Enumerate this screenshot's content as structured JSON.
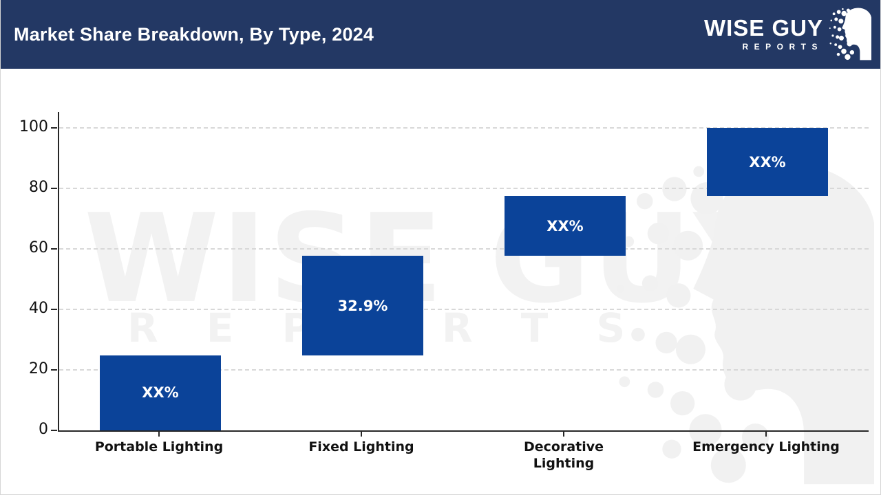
{
  "header": {
    "title": "Market Share Breakdown, By Type, 2024",
    "logo": {
      "name": "WISE GUY",
      "tagline": "REPORTS"
    }
  },
  "watermark": {
    "name": "WISE GUY",
    "tagline": "R E P O R T S"
  },
  "chart_data": {
    "type": "bar",
    "subtype": "waterfall",
    "title": "Market Share Breakdown, By Type, 2024",
    "categories": [
      "Portable Lighting",
      "Fixed Lighting",
      "Decorative\nLighting",
      "Emergency Lighting"
    ],
    "bar_labels": [
      "XX%",
      "32.9%",
      "XX%",
      "XX%"
    ],
    "values": [
      null,
      32.9,
      null,
      null
    ],
    "segments": [
      {
        "start": 0,
        "end": 24.8
      },
      {
        "start": 24.8,
        "end": 57.7
      },
      {
        "start": 57.7,
        "end": 77.5
      },
      {
        "start": 77.5,
        "end": 100
      }
    ],
    "y_ticks": [
      0,
      20,
      40,
      60,
      80,
      100
    ],
    "ylim": [
      0,
      105
    ],
    "xlabel": "",
    "ylabel": "",
    "grid": "horizontal-dashed",
    "legend": "none",
    "bar_color": "#0b4399",
    "bar_label_color": "#ffffff"
  },
  "colors": {
    "header_bg": "#233864",
    "bar": "#0b4399",
    "gridline": "#d8d8d8",
    "axis": "#262626",
    "watermark": "#f2f2f2",
    "page_bg": "#ffffff",
    "border": "#d6d6d6"
  }
}
